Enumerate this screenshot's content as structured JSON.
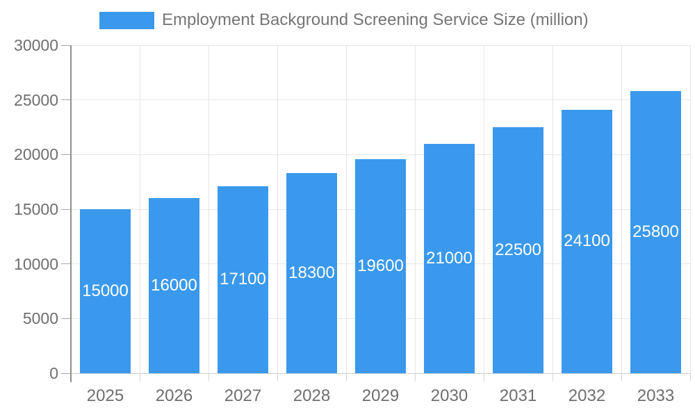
{
  "chart_data": {
    "type": "bar",
    "title": "Employment Background Screening Service Size (million)",
    "legend": {
      "position": "top",
      "label": "Employment Background Screening Service Size (million)"
    },
    "categories": [
      "2025",
      "2026",
      "2027",
      "2028",
      "2029",
      "2030",
      "2031",
      "2032",
      "2033"
    ],
    "values": [
      15000,
      16000,
      17100,
      18300,
      19600,
      21000,
      22500,
      24100,
      25800
    ],
    "value_labels_shown": true,
    "xlabel": "",
    "ylabel": "",
    "ylim": [
      0,
      30000
    ],
    "yticks": [
      0,
      5000,
      10000,
      15000,
      20000,
      25000,
      30000
    ],
    "grid": true
  },
  "colors": {
    "bar": "#3A99EC",
    "value_label_text": "#FFFFFF",
    "axis_text": "#6E6E6E",
    "legend_text": "#757575",
    "gridline": "#E6E6E6",
    "y_axis_line": "#8F8F8F",
    "y_tick": "#A6A6A6",
    "x_tick": "#D4D4D4",
    "baseline": "#CCCCCC",
    "background": "#FFFFFF"
  }
}
